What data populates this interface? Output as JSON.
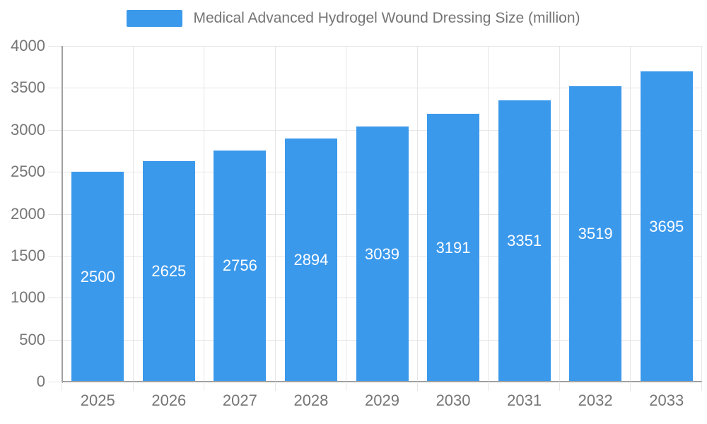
{
  "legend": {
    "label": "Medical Advanced Hydrogel Wound Dressing Size (million)"
  },
  "colors": {
    "background": "#ffffff",
    "bar": "#3b99ec",
    "grid": "#e6e6e6",
    "tick": "#d9d9d9",
    "axis": "#a0a0a0",
    "text": "#757575",
    "bar_label": "#ffffff"
  },
  "chart_data": {
    "type": "bar",
    "title": "Medical Advanced Hydrogel Wound Dressing Size (million)",
    "categories": [
      "2025",
      "2026",
      "2027",
      "2028",
      "2029",
      "2030",
      "2031",
      "2032",
      "2033"
    ],
    "values": [
      2500,
      2625,
      2756,
      2894,
      3039,
      3191,
      3351,
      3519,
      3695
    ],
    "series": [
      {
        "name": "Medical Advanced Hydrogel Wound Dressing Size (million)",
        "values": [
          2500,
          2625,
          2756,
          2894,
          3039,
          3191,
          3351,
          3519,
          3695
        ]
      }
    ],
    "xlabel": "",
    "ylabel": "",
    "ylim": [
      0,
      4000
    ],
    "ytick_step": 500,
    "ytick_labels": [
      "0",
      "500",
      "1000",
      "1500",
      "2000",
      "2500",
      "3000",
      "3500",
      "4000"
    ],
    "grid": true,
    "legend_position": "top-center",
    "value_labels": "inside-center"
  }
}
